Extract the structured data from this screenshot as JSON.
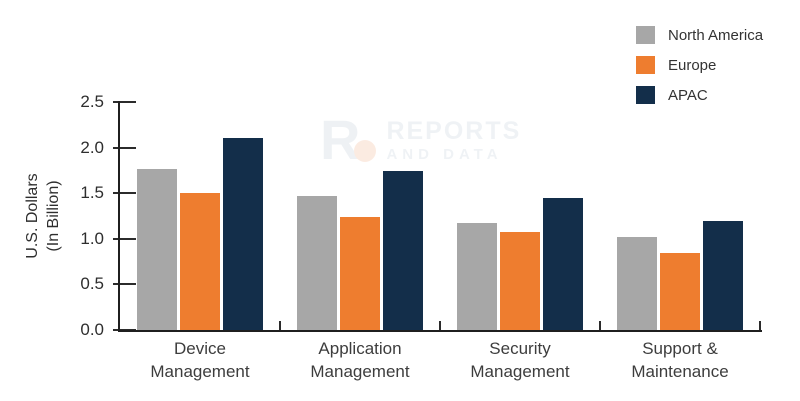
{
  "chart_data": {
    "type": "bar",
    "title": "",
    "xlabel": "",
    "ylabel": "U.S. Dollars (In Billion)",
    "ylabel_line1": "U.S. Dollars",
    "ylabel_line2": "(In Billion)",
    "ylim": [
      0,
      2.5
    ],
    "yticks": [
      0.0,
      0.5,
      1.0,
      1.5,
      2.0,
      2.5
    ],
    "grid": false,
    "legend_position": "top-right",
    "categories": [
      "Device Management",
      "Application Management",
      "Security Management",
      "Support & Maintenance"
    ],
    "categories_lines": [
      [
        "Device",
        "Management"
      ],
      [
        "Application",
        "Management"
      ],
      [
        "Security",
        "Management"
      ],
      [
        "Support &",
        "Maintenance"
      ]
    ],
    "series": [
      {
        "name": "North America",
        "color": "#a7a7a7",
        "values": [
          1.76,
          1.47,
          1.17,
          1.02
        ]
      },
      {
        "name": "Europe",
        "color": "#ee7d2f",
        "values": [
          1.5,
          1.24,
          1.08,
          0.84
        ]
      },
      {
        "name": "APAC",
        "color": "#132e4a",
        "values": [
          2.1,
          1.74,
          1.45,
          1.2
        ]
      }
    ]
  },
  "watermark": {
    "logo_letter": "R",
    "line1": "REPORTS",
    "line2": "AND DATA"
  },
  "colors": {
    "axis": "#1f1f1f",
    "label_text": "#3d3d3d",
    "gray": "#a7a7a7",
    "orange": "#ee7d2f",
    "navy": "#132e4a"
  }
}
